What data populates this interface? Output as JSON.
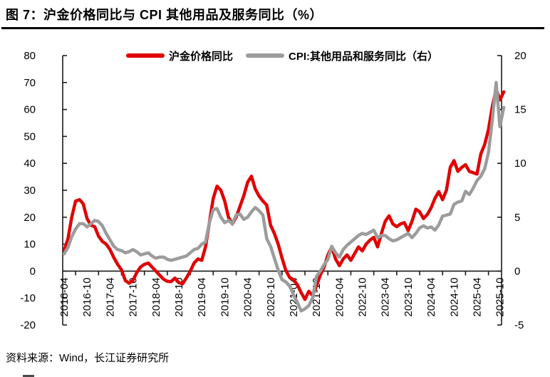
{
  "figure": {
    "title": "图 7：沪金价格同比与 CPI 其他用品及服务同比（%）",
    "source": "资料来源：Wind，长江证券研究所"
  },
  "chart_data": {
    "type": "line",
    "title": "沪金价格同比与 CPI 其他用品及服务同比（%）",
    "x_start": "2016-04",
    "x_frequency": "monthly",
    "x_tick_labels": [
      "2016-04",
      "2016-10",
      "2017-04",
      "2017-10",
      "2018-04",
      "2018-10",
      "2019-04",
      "2019-10",
      "2020-04",
      "2020-10",
      "2021-04",
      "2021-10",
      "2022-04",
      "2022-10",
      "2023-04",
      "2023-10",
      "2024-04",
      "2024-10",
      "2025-04",
      "2025-10"
    ],
    "left_axis": {
      "min": -20,
      "max": 80,
      "tick_step": 10,
      "tick_labels": [
        "80",
        "70",
        "60",
        "50",
        "40",
        "30",
        "20",
        "10",
        "0",
        "-10",
        "-20"
      ]
    },
    "right_axis": {
      "min": -5,
      "max": 20,
      "tick_step": 5,
      "tick_labels": [
        "20",
        "15",
        "10",
        "5",
        "0",
        "-5"
      ]
    },
    "grid": false,
    "legend_position": "top-center",
    "series": [
      {
        "name": "沪金价格同比",
        "axis": "left",
        "color": "#e00000",
        "values": [
          7.5,
          12,
          20,
          26,
          26.5,
          25,
          19.5,
          17,
          16.5,
          13,
          11,
          10,
          8,
          5,
          2.5,
          0.5,
          -3.5,
          -4.5,
          -3.5,
          -0.5,
          1.5,
          2.5,
          3,
          1.5,
          0,
          -1.5,
          -3,
          -3.8,
          -3.9,
          -2.6,
          -4.3,
          -4.7,
          -2.5,
          0,
          3,
          4.5,
          4,
          9,
          18,
          27,
          31.5,
          30,
          26,
          20,
          17.5,
          20,
          24,
          28,
          33,
          35.2,
          30.5,
          27.8,
          26,
          24.5,
          17,
          14,
          10,
          4.8,
          0.3,
          -2.4,
          -3.2,
          -5,
          -8,
          -10.5,
          -7.5,
          -9,
          -5.5,
          -1.5,
          1.5,
          6,
          9,
          4.5,
          2,
          4.5,
          6,
          4,
          6.5,
          9,
          7.5,
          10,
          11.5,
          12.5,
          9,
          14,
          18.5,
          20.5,
          17.5,
          16.5,
          17.5,
          18,
          15,
          18.5,
          23,
          22,
          19.5,
          21,
          23.5,
          27,
          29.5,
          26.5,
          30,
          38.5,
          41,
          37,
          38.5,
          39.5,
          37,
          36.5,
          36,
          43.5,
          47,
          52.5,
          61,
          67.5,
          63.5,
          66.5
        ]
      },
      {
        "name": "CPI:其他用品和服务同比（右）",
        "axis": "right",
        "color": "#9c9c9c",
        "values": [
          1.6,
          2.2,
          3.2,
          3.9,
          4.4,
          4.4,
          4.1,
          4.4,
          4.7,
          4.6,
          4.2,
          3.5,
          2.9,
          2.3,
          2.0,
          1.9,
          1.7,
          1.8,
          2.0,
          1.8,
          1.5,
          1.6,
          1.7,
          1.4,
          1.2,
          1.3,
          1.3,
          1.1,
          1.0,
          1.1,
          1.2,
          1.3,
          1.4,
          1.7,
          2.0,
          2.1,
          2.5,
          2.7,
          4.5,
          5.7,
          5.8,
          5.0,
          4.5,
          4.7,
          4.4,
          5.2,
          5.3,
          4.8,
          5.0,
          5.5,
          5.9,
          5.6,
          5.2,
          3.0,
          2.3,
          1.2,
          0.1,
          -0.8,
          -1.0,
          -1.4,
          -2.2,
          -2.9,
          -3.7,
          -3.5,
          -3.2,
          -2.5,
          -0.5,
          0.0,
          0.6,
          1.1,
          2.3,
          1.7,
          1.3,
          2.0,
          2.4,
          2.7,
          3.0,
          3.3,
          3.5,
          3.4,
          3.6,
          3.8,
          3.1,
          3.3,
          3.3,
          3.0,
          2.8,
          2.9,
          3.1,
          3.3,
          3.5,
          3.1,
          3.5,
          4.0,
          4.2,
          4.0,
          4.1,
          3.8,
          4.3,
          5.1,
          5.2,
          5.3,
          6.2,
          6.4,
          6.5,
          7.4,
          7.1,
          7.7,
          8.4,
          8.8,
          9.5,
          11.0,
          14.0,
          17.5,
          13.4,
          15.2
        ]
      }
    ]
  }
}
